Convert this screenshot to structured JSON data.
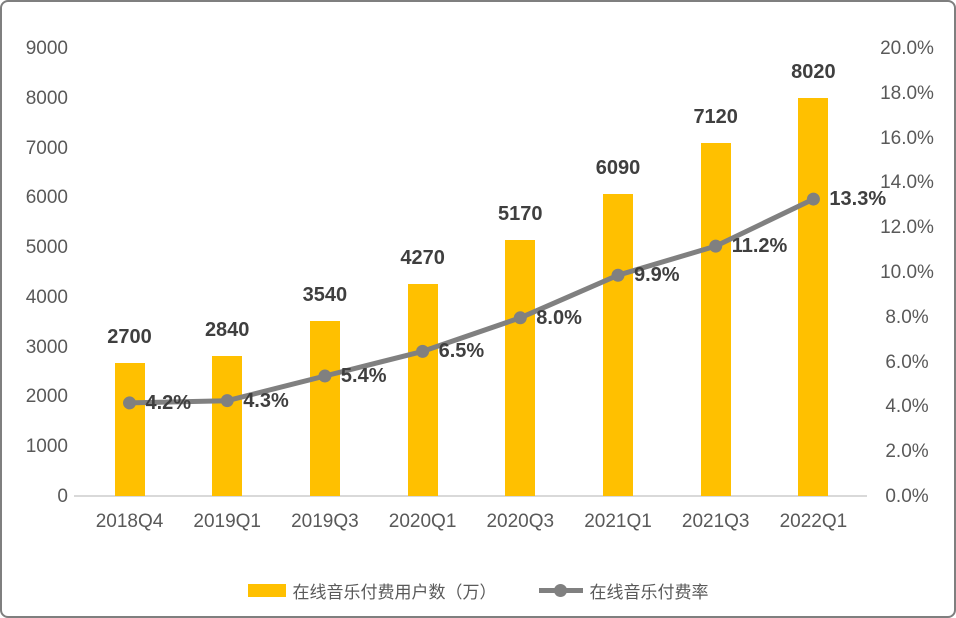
{
  "chart_data": {
    "type": "bar",
    "combo": "bar+line",
    "title": "",
    "xlabel": "",
    "ylabel": "",
    "grid": false,
    "legend_position": "bottom",
    "categories": [
      "2018Q4",
      "2019Q1",
      "2019Q3",
      "2020Q1",
      "2020Q3",
      "2021Q1",
      "2021Q3",
      "2022Q1"
    ],
    "series": [
      {
        "name": "在线音乐付费用户数（万）",
        "type": "bar",
        "axis": "left",
        "color": "#FFC000",
        "values": [
          2700,
          2840,
          3540,
          4270,
          5170,
          6090,
          7120,
          8020
        ],
        "labels": [
          "2700",
          "2840",
          "3540",
          "4270",
          "5170",
          "6090",
          "7120",
          "8020"
        ]
      },
      {
        "name": "在线音乐付费率",
        "type": "line",
        "axis": "right",
        "color": "#808080",
        "values": [
          4.2,
          4.3,
          5.4,
          6.5,
          8.0,
          9.9,
          11.2,
          13.3
        ],
        "labels": [
          "4.2%",
          "4.3%",
          "5.4%",
          "6.5%",
          "8.0%",
          "9.9%",
          "11.2%",
          "13.3%"
        ]
      }
    ],
    "left_axis": {
      "min": 0,
      "max": 9000,
      "step": 1000,
      "ticks": [
        "0",
        "1000",
        "2000",
        "3000",
        "4000",
        "5000",
        "6000",
        "7000",
        "8000",
        "9000"
      ]
    },
    "right_axis": {
      "min": 0,
      "max": 20,
      "step": 2,
      "ticks": [
        "0.0%",
        "2.0%",
        "4.0%",
        "6.0%",
        "8.0%",
        "10.0%",
        "12.0%",
        "14.0%",
        "16.0%",
        "18.0%",
        "20.0%"
      ]
    }
  },
  "legend": {
    "items": [
      {
        "label": "在线音乐付费用户数（万）",
        "swatch": "bar",
        "color": "#FFC000"
      },
      {
        "label": "在线音乐付费率",
        "swatch": "line-dot",
        "color": "#808080"
      }
    ]
  },
  "colors": {
    "bar": "#FFC000",
    "line": "#808080",
    "data_label": "#3F3F3F",
    "axis_label": "#595959",
    "axis_line": "#D9D9D9",
    "border": "#7F7F7F",
    "background": "#FFFFFF"
  }
}
